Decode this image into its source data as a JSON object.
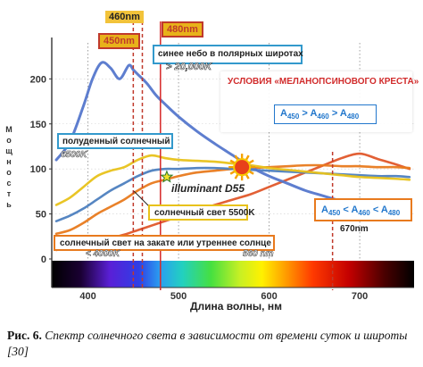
{
  "chart_data": {
    "type": "line",
    "xlabel": "Длина волны, нм",
    "ylabel": "Мощность",
    "xlim": [
      360,
      760
    ],
    "ylim": [
      0,
      240
    ],
    "x_ticks": [
      400,
      500,
      600,
      700
    ],
    "y_ticks": [
      0,
      50,
      100,
      150,
      200
    ],
    "x_tick_labels": [
      "400",
      "500",
      "600",
      "700"
    ],
    "y_tick_labels": [
      "0",
      "50",
      "100",
      "150",
      "200"
    ],
    "grid": "vertical dotted",
    "spectrum_band": true,
    "series": [
      {
        "name": "синее небо в полярных широтах",
        "annotation": "> 20,000K",
        "color": "#5577cc",
        "x": [
          365,
          380,
          395,
          405,
          415,
          425,
          435,
          445,
          450,
          455,
          465,
          475,
          485,
          500,
          520,
          540,
          560,
          580,
          600,
          620,
          640,
          660,
          680,
          700,
          720,
          740,
          755
        ],
        "y": [
          110,
          130,
          170,
          200,
          218,
          212,
          200,
          215,
          210,
          205,
          195,
          182,
          172,
          158,
          142,
          128,
          115,
          102,
          92,
          84,
          76,
          70,
          64,
          57,
          52,
          47,
          44
        ]
      },
      {
        "name": "полуденный солнечный",
        "annotation": "6500K",
        "color": "#e8c21a",
        "x": [
          365,
          380,
          395,
          410,
          425,
          440,
          455,
          470,
          485,
          500,
          520,
          540,
          560,
          580,
          600,
          620,
          640,
          660,
          680,
          700,
          720,
          740,
          755
        ],
        "y": [
          60,
          68,
          80,
          92,
          98,
          102,
          110,
          115,
          112,
          110,
          109,
          108,
          106,
          104,
          101,
          99,
          97,
          95,
          93,
          91,
          90,
          89,
          88
        ]
      },
      {
        "name": "illuminant D55",
        "color": "#4d7fbf",
        "x": [
          365,
          380,
          395,
          410,
          425,
          440,
          455,
          470,
          485,
          500,
          520,
          540,
          560,
          580,
          600,
          620,
          640,
          660,
          680,
          700,
          720,
          740,
          755
        ],
        "y": [
          42,
          48,
          56,
          66,
          76,
          84,
          92,
          98,
          100,
          100,
          101,
          101,
          100,
          99,
          98,
          97,
          96,
          95,
          94,
          93,
          92,
          92,
          91
        ]
      },
      {
        "name": "солнечный свет 5500K",
        "color": "#e87a1e",
        "x": [
          365,
          380,
          395,
          410,
          425,
          440,
          455,
          470,
          485,
          500,
          520,
          540,
          560,
          580,
          600,
          620,
          640,
          660,
          680,
          700,
          720,
          740,
          755
        ],
        "y": [
          28,
          32,
          40,
          50,
          58,
          66,
          76,
          84,
          88,
          92,
          96,
          98,
          100,
          101,
          102,
          103,
          104,
          104,
          103,
          103,
          102,
          102,
          101
        ]
      },
      {
        "name": "солнечный свет на закате или утреннее солнце",
        "annotation": "< 4000K",
        "color": "#e0572a",
        "x": [
          365,
          380,
          395,
          410,
          425,
          440,
          455,
          470,
          485,
          500,
          520,
          540,
          560,
          580,
          600,
          620,
          640,
          660,
          680,
          700,
          720,
          740,
          755
        ],
        "y": [
          10,
          13,
          16,
          19,
          23,
          27,
          32,
          37,
          42,
          47,
          54,
          60,
          66,
          72,
          80,
          88,
          96,
          104,
          112,
          117,
          111,
          105,
          100
        ]
      }
    ],
    "markers": [
      {
        "name": "460nm",
        "x": 460,
        "color": "#c0392b",
        "style": "dashed"
      },
      {
        "name": "450nm",
        "x": 450,
        "color": "#c0392b",
        "style": "dashed"
      },
      {
        "name": "480nm",
        "x": 480,
        "color": "#d62828",
        "style": "solid"
      },
      {
        "name": "670nm",
        "x": 670,
        "color": "#c0392b",
        "style": "dashed"
      }
    ],
    "annotations": {
      "curve_label_560": "560 nm",
      "sun_symbol_x": 570,
      "sun_symbol_y": 102,
      "star_symbol_x": 487,
      "star_symbol_y": 91
    }
  },
  "labels": {
    "tag_460": "460nm",
    "tag_450": "450nm",
    "tag_480": "480nm",
    "tag_670": "670nm",
    "blue_sky": "синее небо в полярных широтах",
    "blue_sky_k": "> 20,000K",
    "conditions_title": "УСЛОВИЯ «МЕЛАНОПСИНОВОГО КРЕСТА»",
    "ineq1": "A450 > A460 > A480",
    "ineq2": "A450 < A460 < A480",
    "noon": "полуденный солнечный",
    "noon_k": "6500K",
    "illuminant": "illuminant D55",
    "sun5500": "солнечный свет 5500K",
    "sunset": "солнечный свет на закате или утреннее солнце",
    "sunset_k": "< 4000K",
    "nm560": "560 nm",
    "xlabel": "Длина волны, нм",
    "ylabel_chars": [
      "М",
      "о",
      "щ",
      "н",
      "о",
      "с",
      "т",
      "ь"
    ],
    "caption_bold": "Рис. 6.",
    "caption_text": "Спектр солнечного света в зависимости от времени суток и широты [30]"
  },
  "colors": {
    "blue": "#5577cc",
    "yellow": "#e8c21a",
    "orange": "#e87a1e",
    "red_orange": "#e0572a",
    "marker_red": "#c0392b",
    "conditions_text": "#d12b2b",
    "ineq_blue": "#2277cc"
  }
}
